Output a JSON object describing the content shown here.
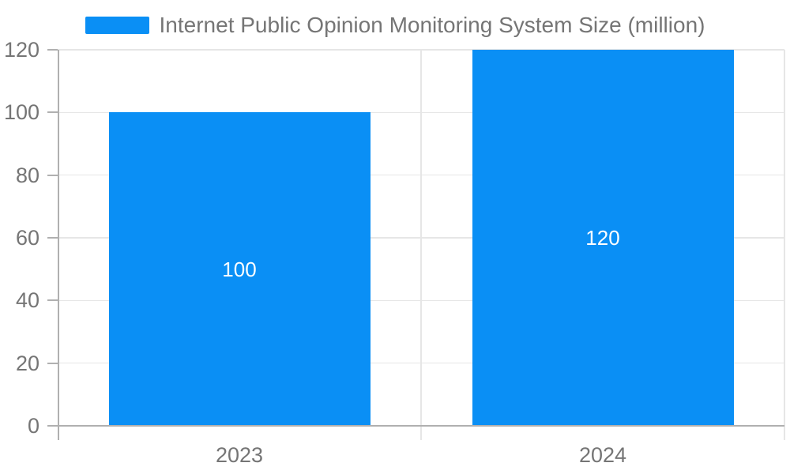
{
  "chart_data": {
    "type": "bar",
    "title": "Internet Public Opinion Monitoring System Size (million)",
    "legend": [
      "Internet Public Opinion Monitoring System Size (million)"
    ],
    "legend_position": "top-center",
    "categories": [
      "2023",
      "2024"
    ],
    "series": [
      {
        "name": "Internet Public Opinion Monitoring System Size (million)",
        "values": [
          100,
          120
        ]
      }
    ],
    "data_labels": [
      "100",
      "120"
    ],
    "xlabel": "",
    "ylabel": "",
    "ylim": [
      0,
      120
    ],
    "yticks": [
      0,
      20,
      40,
      60,
      80,
      100,
      120
    ],
    "grid": true,
    "colors": {
      "bar": "#0a8ff5",
      "axis_line": "#b0b0b0",
      "gridline": "#e6e6e6",
      "tick_text": "#757575",
      "data_label_text": "#ffffff",
      "background": "#ffffff"
    }
  }
}
